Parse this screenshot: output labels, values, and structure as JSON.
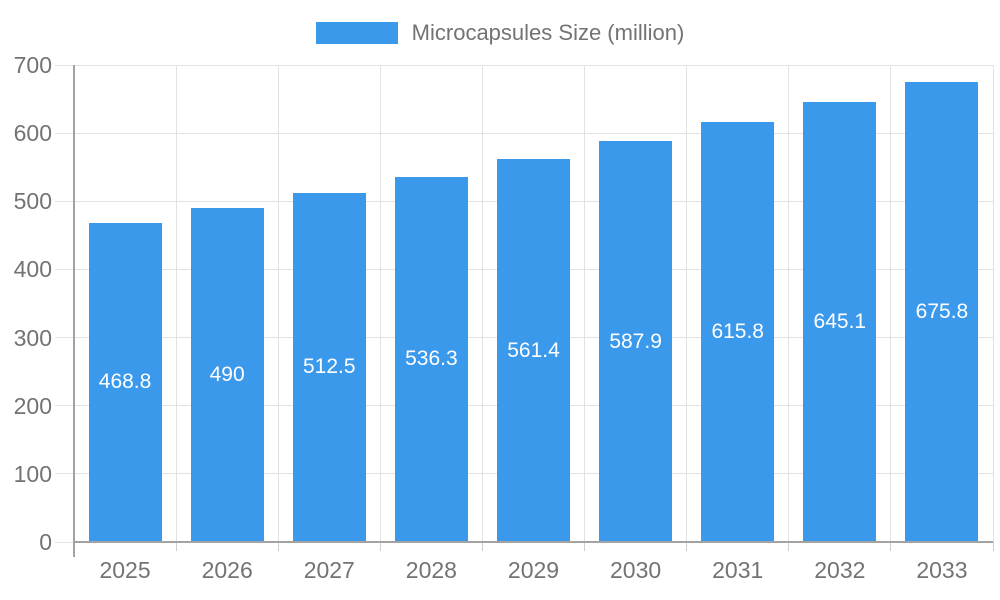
{
  "legend": {
    "label": "Microcapsules Size (million)"
  },
  "chart_data": {
    "type": "bar",
    "title": "",
    "xlabel": "",
    "ylabel": "",
    "categories": [
      "2025",
      "2026",
      "2027",
      "2028",
      "2029",
      "2030",
      "2031",
      "2032",
      "2033"
    ],
    "series": [
      {
        "name": "Microcapsules Size (million)",
        "values": [
          468.8,
          490,
          512.5,
          536.3,
          561.4,
          587.9,
          615.8,
          645.1,
          675.8
        ],
        "labels": [
          "468.8",
          "490",
          "512.5",
          "536.3",
          "561.4",
          "587.9",
          "615.8",
          "645.1",
          "675.8"
        ]
      }
    ],
    "ylim": [
      0,
      700
    ],
    "yticks": [
      0,
      100,
      200,
      300,
      400,
      500,
      600,
      700
    ],
    "grid": true,
    "legend_position": "top",
    "value_label_position": "center-of-bar"
  },
  "colors": {
    "bar": "#3b99ec",
    "axis": "#a3a3a3",
    "grid": "#e2e2e2",
    "tick": "#cfcfcf",
    "text": "#737373",
    "value_text": "#ffffff",
    "background": "#ffffff"
  }
}
